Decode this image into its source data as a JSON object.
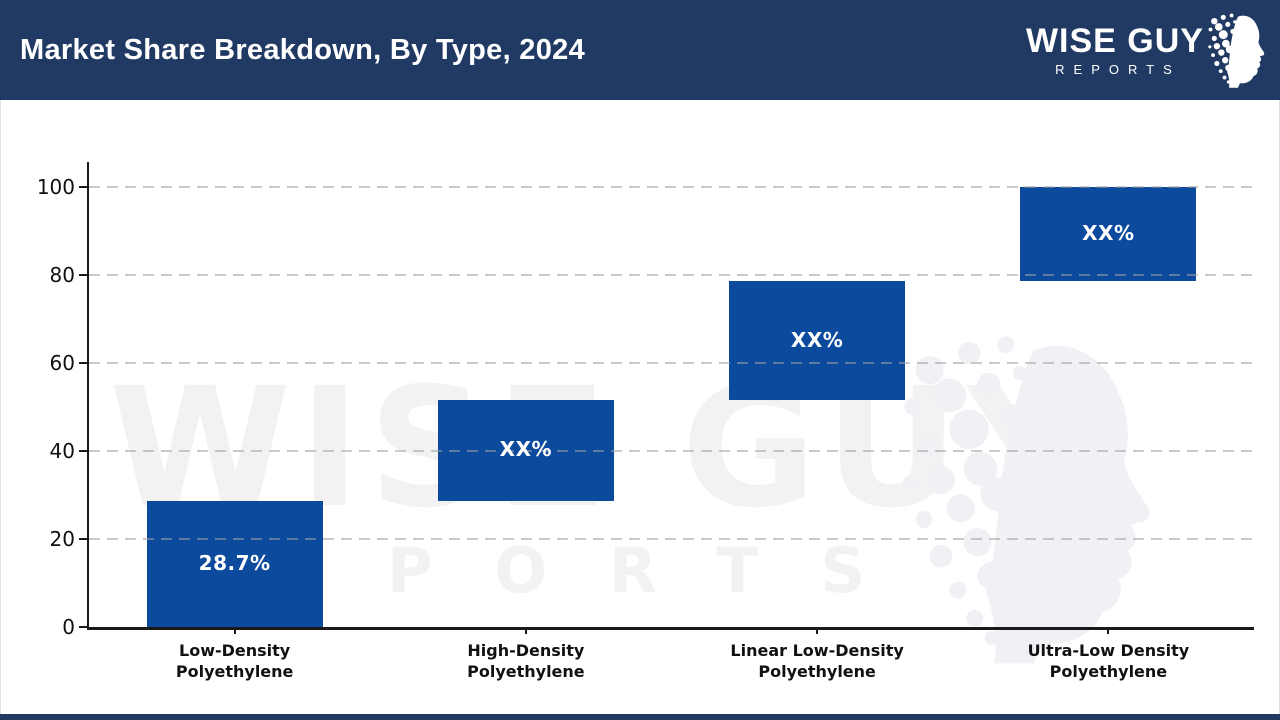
{
  "header": {
    "title": "Market Share Breakdown, By Type, 2024",
    "brand": {
      "name": "WISE GUY",
      "subtitle": "REPORTS"
    },
    "background_color": "#213a64",
    "text_color": "#ffffff"
  },
  "watermark": {
    "word1": "WISE GUY",
    "word2": "REPORTS"
  },
  "chart_data": {
    "type": "bar",
    "subtype": "waterfall (floating stacked segments)",
    "title": "Market Share Breakdown, By Type, 2024",
    "categories": [
      "Low-Density Polyethylene",
      "High-Density Polyethylene",
      "Linear Low-Density Polyethylene",
      "Ultra-Low Density Polyethylene"
    ],
    "category_label_lines": [
      "Low-Density\nPolyethylene",
      "High-Density\nPolyethylene",
      "Linear Low-Density\nPolyethylene",
      "Ultra-Low Density\nPolyethylene"
    ],
    "segments": [
      {
        "start": 0,
        "end": 28.7,
        "label": "28.7%"
      },
      {
        "start": 28.7,
        "end": 51.6,
        "label": "XX%"
      },
      {
        "start": 51.6,
        "end": 78.6,
        "label": "XX%"
      },
      {
        "start": 78.6,
        "end": 100,
        "label": "XX%"
      }
    ],
    "xlabel": "",
    "ylabel": "",
    "ylim": [
      0,
      100
    ],
    "yticks": [
      0,
      20,
      40,
      60,
      80,
      100
    ],
    "grid": {
      "horizontal": true,
      "style": "dashed",
      "drawn_above_bars": true,
      "color": "#d9d9d9"
    },
    "legend": "none",
    "bar_color": "#0c4a9e",
    "bar_label_color": "#ffffff",
    "axis_color": "#1a1a1a"
  },
  "footer": {
    "background_color": "#213a64"
  }
}
